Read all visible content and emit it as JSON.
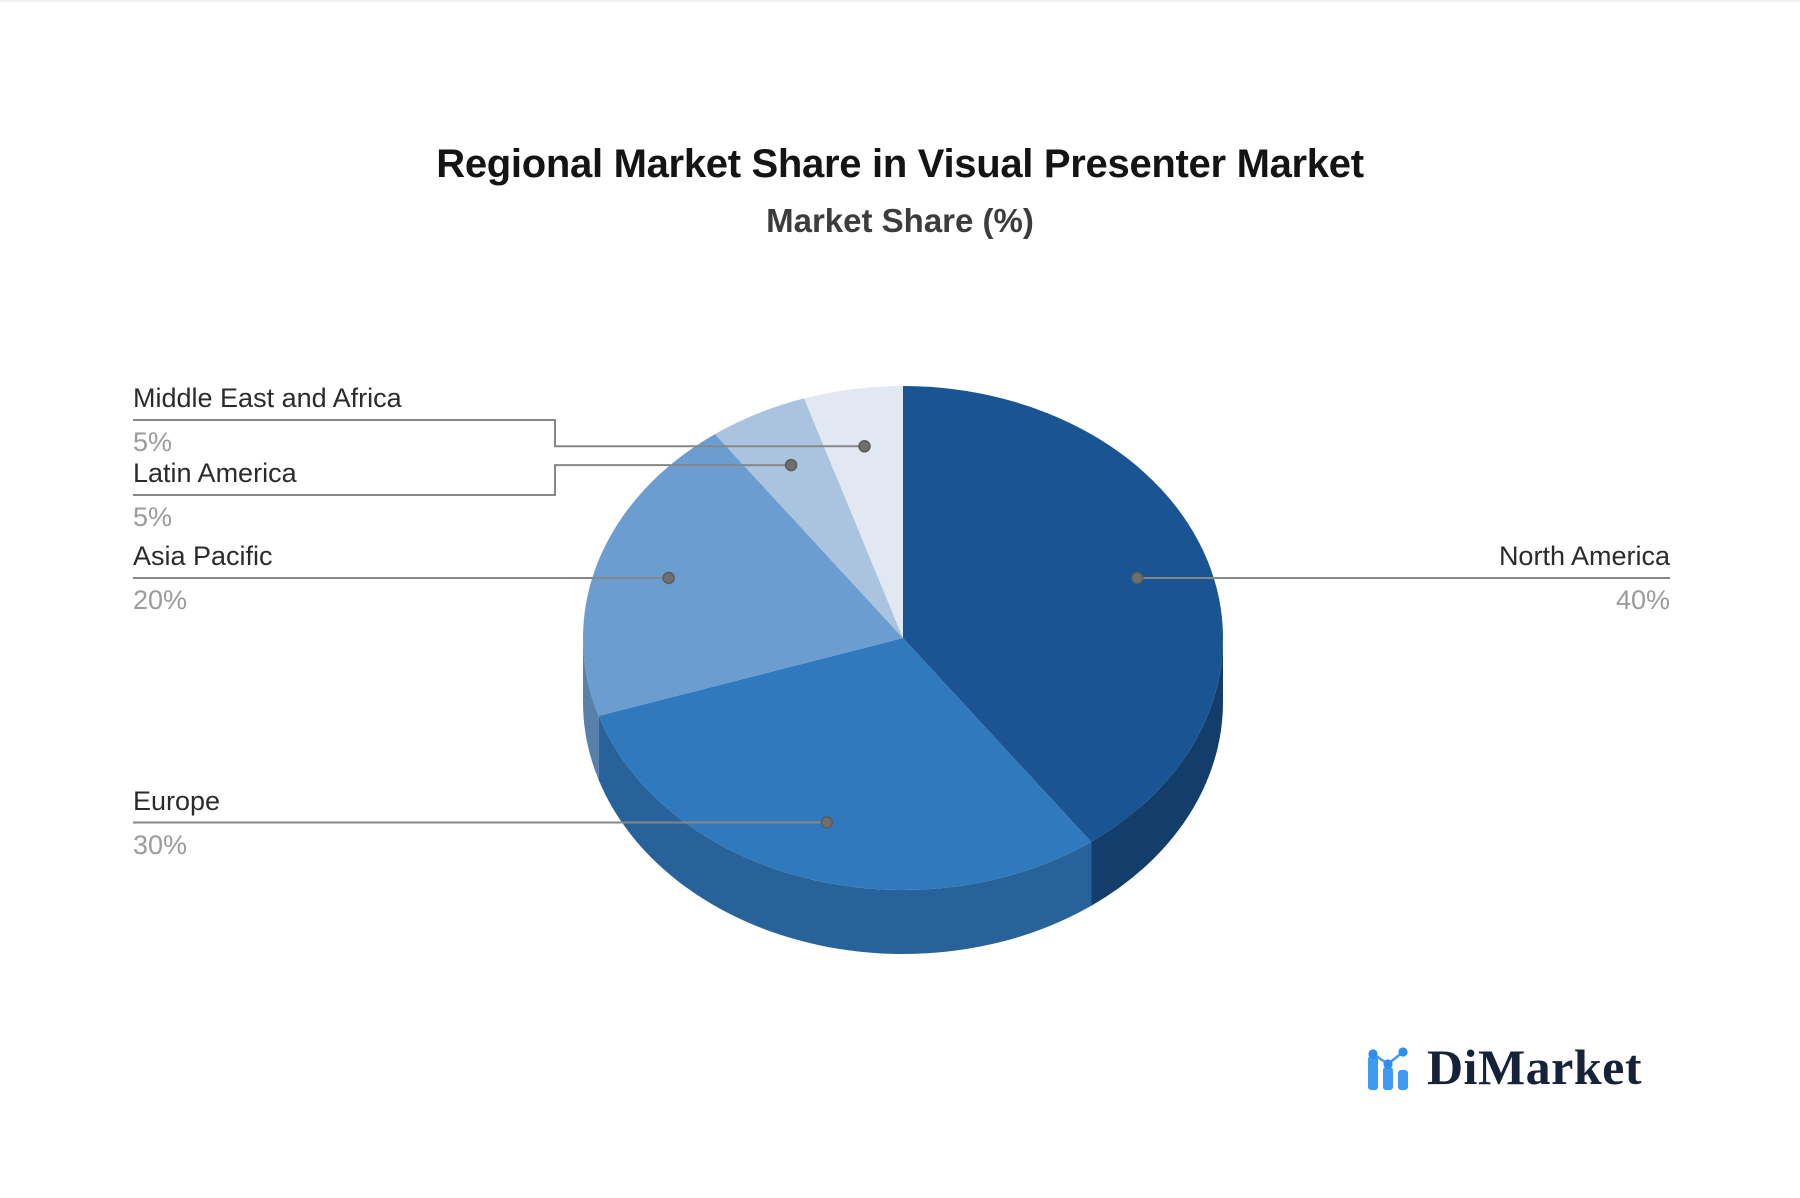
{
  "chart_data": {
    "type": "pie",
    "title": "Regional Market Share in Visual Presenter Market",
    "subtitle": "Market Share (%)",
    "unit": "%",
    "effect": "3d",
    "start_angle_deg": 90,
    "direction": "clockwise",
    "legend_position": "callout-labels",
    "slices": [
      {
        "label": "North America",
        "value": 40,
        "pct_label": "40%",
        "color": "#1a5492",
        "side_color": "#133e6b"
      },
      {
        "label": "Europe",
        "value": 30,
        "pct_label": "30%",
        "color": "#2f79bc",
        "side_color": "#27639a"
      },
      {
        "label": "Asia Pacific",
        "value": 20,
        "pct_label": "20%",
        "color": "#6b9dd1",
        "side_color": "#5880aa"
      },
      {
        "label": "Latin America",
        "value": 5,
        "pct_label": "5%",
        "color": "#aac4df",
        "side_color": "#8fa9c4"
      },
      {
        "label": "Middle East and Africa",
        "value": 5,
        "pct_label": "5%",
        "color": "#e2e8f1",
        "side_color": "#c3ccda"
      }
    ],
    "style": {
      "leader_line_color": "#878787",
      "leader_dot_color": "#6f6f6f",
      "label_color": "#2b2b2b",
      "value_color": "#9b9b9b",
      "background": "#ffffff"
    }
  },
  "brand": {
    "name": "DiMarket",
    "icon": "bar-chart-logo-icon",
    "icon_color": "#3f9af2",
    "text_color": "#15223a"
  }
}
